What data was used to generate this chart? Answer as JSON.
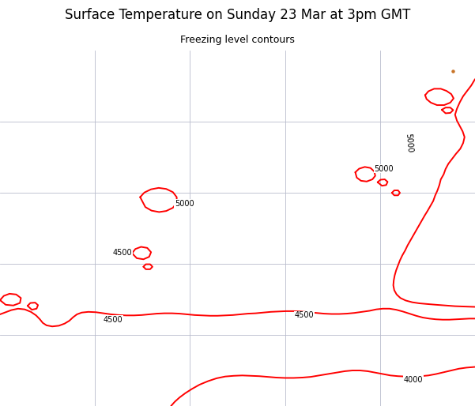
{
  "title": "Surface Temperature on Sunday 23 Mar at 3pm GMT",
  "subtitle": "Freezing level contours",
  "title_fontsize": 12,
  "subtitle_fontsize": 9,
  "map_bg_color": "#dde0f0",
  "border_color": "#aaaaaa",
  "grid_color": "#b8bbcc",
  "contour_color": "#ff0000",
  "contour_linewidth": 1.4,
  "label_fontsize": 7,
  "title_bg": "#ffffff"
}
